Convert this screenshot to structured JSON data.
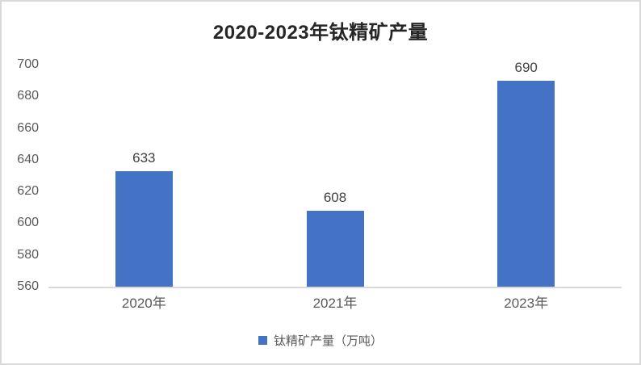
{
  "title": "2020-2023年钛精矿产量",
  "legend": {
    "label": "钛精矿产量（万吨）"
  },
  "colors": {
    "bar": "#4472C4",
    "axis_line": "#D9D9D9",
    "frame_border": "#D9D9D9",
    "title_text": "#262626",
    "axis_text": "#595959",
    "value_label_text": "#404040"
  },
  "chart_data": {
    "type": "bar",
    "title": "2020-2023年钛精矿产量",
    "categories": [
      "2020年",
      "2021年",
      "2023年"
    ],
    "values": [
      633,
      608,
      690
    ],
    "series_name": "钛精矿产量（万吨）",
    "xlabel": "",
    "ylabel": "",
    "ylim": [
      560,
      700
    ],
    "yticks": [
      560,
      580,
      600,
      620,
      640,
      660,
      680,
      700
    ],
    "grid": false,
    "data_labels": true,
    "legend_position": "bottom"
  }
}
